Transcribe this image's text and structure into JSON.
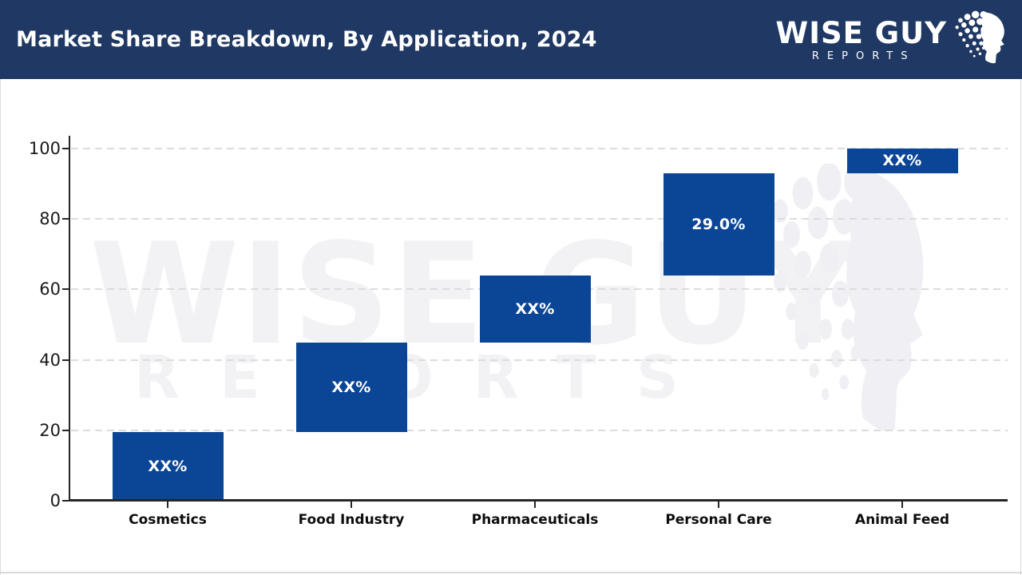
{
  "header": {
    "title": "Market Share Breakdown, By Application, 2024",
    "logo": {
      "line1": "WISE GUY",
      "line2": "REPORTS"
    }
  },
  "watermark": {
    "line1": "WISE GUY",
    "line2": "REPORTS"
  },
  "chart_data": {
    "type": "bar",
    "subtype": "waterfall-floating-bars",
    "title": "Market Share Breakdown, By Application, 2024",
    "categories": [
      "Cosmetics",
      "Food Industry",
      "Pharmaceuticals",
      "Personal Care",
      "Animal Feed"
    ],
    "segments": [
      {
        "category": "Cosmetics",
        "start": 0,
        "end": 19.5,
        "value": 19.5,
        "label": "XX%"
      },
      {
        "category": "Food Industry",
        "start": 19.5,
        "end": 45,
        "value": 25.5,
        "label": "XX%"
      },
      {
        "category": "Pharmaceuticals",
        "start": 45,
        "end": 64,
        "value": 19,
        "label": "XX%"
      },
      {
        "category": "Personal Care",
        "start": 64,
        "end": 93,
        "value": 29,
        "label": "29.0%"
      },
      {
        "category": "Animal Feed",
        "start": 93,
        "end": 100,
        "value": 7,
        "label": "XX%"
      }
    ],
    "yticks": [
      0,
      20,
      40,
      60,
      80,
      100
    ],
    "ylim": [
      0,
      104
    ],
    "xlabel": "",
    "ylabel": "",
    "grid": "horizontal-dashed",
    "legend": "none",
    "colors": {
      "bar": "#0b4596",
      "header_background": "#1f3864",
      "bar_label_text": "#ffffff",
      "axis": "#262626",
      "gridline": "#dcdcdc"
    }
  }
}
